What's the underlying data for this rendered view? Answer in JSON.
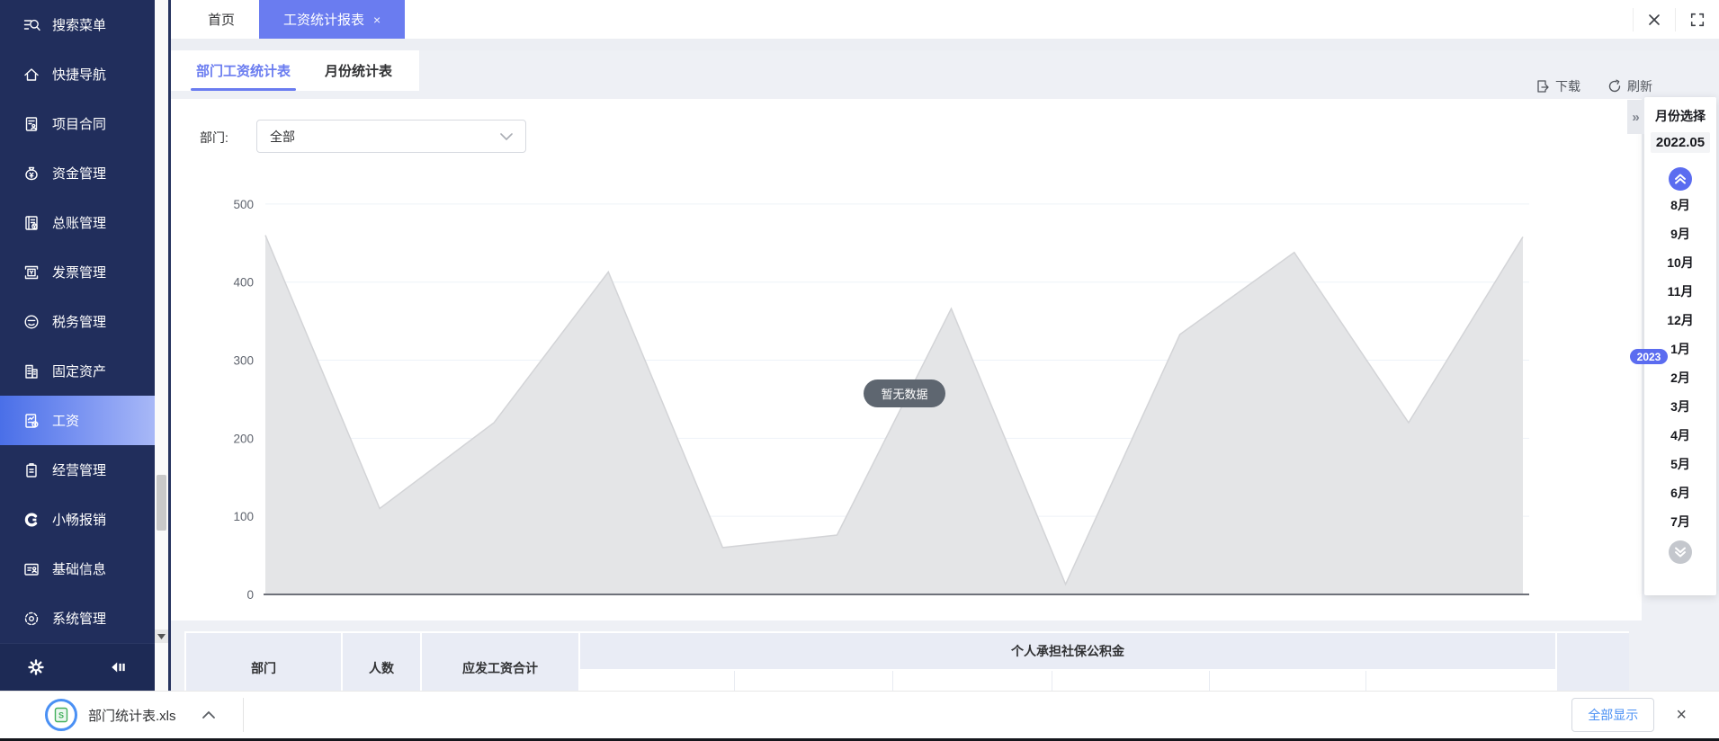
{
  "colors": {
    "accent": "#6a7cf0",
    "sidebar_bg": "#212e5c",
    "sidebar_active_gradient": [
      "#4a6fe8",
      "#a8b8f7"
    ],
    "chart_fill": "#e4e5e7",
    "chart_edge": "#d3d4d7",
    "tooltip_bg": "#5e6670",
    "table_header_bg": "#e9ecf5",
    "link_blue": "#4a90f4",
    "month_button_blue": "#5b6cf0"
  },
  "sidebar": {
    "items": [
      {
        "id": "search-menu",
        "label": "搜索菜单",
        "icon": "search-menu",
        "active": false
      },
      {
        "id": "quick-nav",
        "label": "快捷导航",
        "icon": "home",
        "active": false
      },
      {
        "id": "project-contract",
        "label": "项目合同",
        "icon": "project-contract",
        "active": false
      },
      {
        "id": "funds-mgmt",
        "label": "资金管理",
        "icon": "money-bag",
        "active": false
      },
      {
        "id": "general-ledger",
        "label": "总账管理",
        "icon": "ledger",
        "active": false
      },
      {
        "id": "invoice-mgmt",
        "label": "发票管理",
        "icon": "invoice",
        "active": false
      },
      {
        "id": "tax-mgmt",
        "label": "税务管理",
        "icon": "tax-circle",
        "active": false
      },
      {
        "id": "fixed-assets",
        "label": "固定资产",
        "icon": "building",
        "active": false
      },
      {
        "id": "salary",
        "label": "工资",
        "icon": "salary-sheet",
        "active": true
      },
      {
        "id": "business-mgmt",
        "label": "经营管理",
        "icon": "clipboard",
        "active": false
      },
      {
        "id": "xiaochang-baoxiao",
        "label": "小畅报销",
        "icon": "c-logo",
        "active": false
      },
      {
        "id": "basic-info",
        "label": "基础信息",
        "icon": "id-card",
        "active": false
      },
      {
        "id": "system-mgmt",
        "label": "系统管理",
        "icon": "system-circle",
        "active": false
      }
    ]
  },
  "tabbar": {
    "tabs": [
      {
        "id": "home",
        "label": "首页",
        "active": false,
        "closable": false
      },
      {
        "id": "salary-report",
        "label": "工资统计报表",
        "active": true,
        "closable": true
      }
    ],
    "close_glyph": "×"
  },
  "subtabs": [
    {
      "id": "dept-salary",
      "label": "部门工资统计表",
      "active": true
    },
    {
      "id": "month-stats",
      "label": "月份统计表",
      "active": false
    }
  ],
  "toolbar": {
    "download_label": "下载",
    "refresh_label": "刷新"
  },
  "filter": {
    "label": "部门:",
    "value": "全部"
  },
  "chart_data": {
    "type": "area",
    "series": [
      {
        "name": "dept-salary-total",
        "values": [
          460,
          110,
          220,
          413,
          60,
          76,
          366,
          13,
          333,
          438,
          220,
          458
        ]
      }
    ],
    "x_tick_labels_visible": false,
    "ylim": [
      0,
      500
    ],
    "yticks": [
      0,
      100,
      200,
      300,
      400,
      500
    ],
    "grid": true,
    "legend": false,
    "no_data_tooltip": "暂无数据"
  },
  "month_panel": {
    "collapse_icon": "»",
    "title": "月份选择",
    "current": "2022.05",
    "months": [
      "8月",
      "9月",
      "10月",
      "11月",
      "12月",
      "1月",
      "2月",
      "3月",
      "4月",
      "5月",
      "6月",
      "7月"
    ],
    "year_badge": {
      "label": "2023",
      "before_month": "1月"
    }
  },
  "table": {
    "header_row1": [
      {
        "label": "部门",
        "rowspan": 2
      },
      {
        "label": "人数",
        "rowspan": 2
      },
      {
        "label": "应发工资合计",
        "rowspan": 2
      },
      {
        "label": "个人承担社保公积金",
        "colspan": 6
      },
      {
        "label": "",
        "rowspan": 2
      }
    ],
    "sub_columns_count": 6
  },
  "footer": {
    "filename": "部门统计表.xls",
    "show_all_label": "全部显示",
    "close_icon": "×"
  }
}
